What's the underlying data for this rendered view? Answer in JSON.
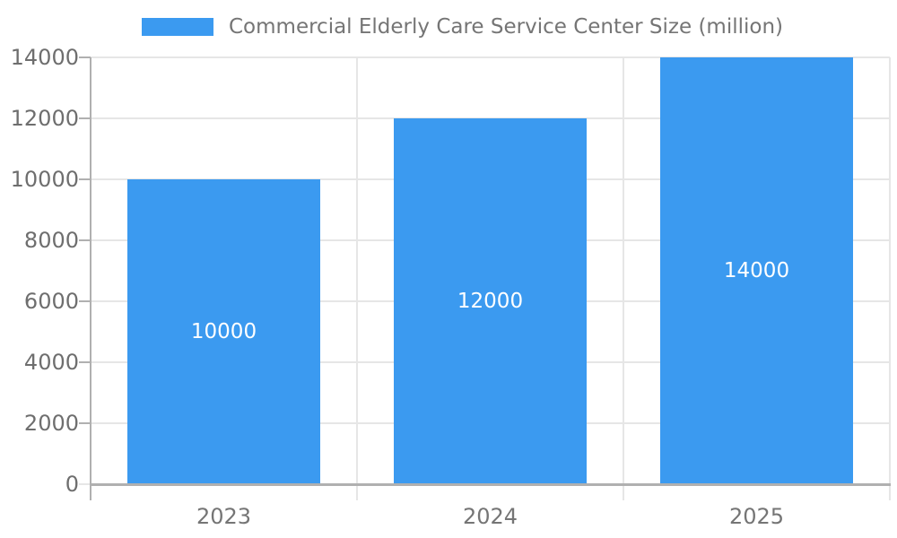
{
  "chart_data": {
    "type": "bar",
    "title": "Commercial Elderly Care Service Center Size (million)",
    "categories": [
      "2023",
      "2024",
      "2025"
    ],
    "values": [
      10000,
      12000,
      14000
    ],
    "data_labels": [
      "10000",
      "12000",
      "14000"
    ],
    "ytick_labels": [
      "0",
      "2000",
      "4000",
      "6000",
      "8000",
      "10000",
      "12000",
      "14000"
    ],
    "ylim": [
      0,
      14000
    ],
    "ytick_step": 2000,
    "grid": true,
    "legend_position": "top",
    "xlabel": "",
    "ylabel": "",
    "colors": {
      "bar": "#3b9af0",
      "data_label_text": "#ffffff",
      "title_text": "#757575",
      "axis_label_text": "#6e6e6e",
      "gridline": "#e6e6e6",
      "axis_line": "#b0b0b0",
      "background": "#ffffff"
    }
  }
}
